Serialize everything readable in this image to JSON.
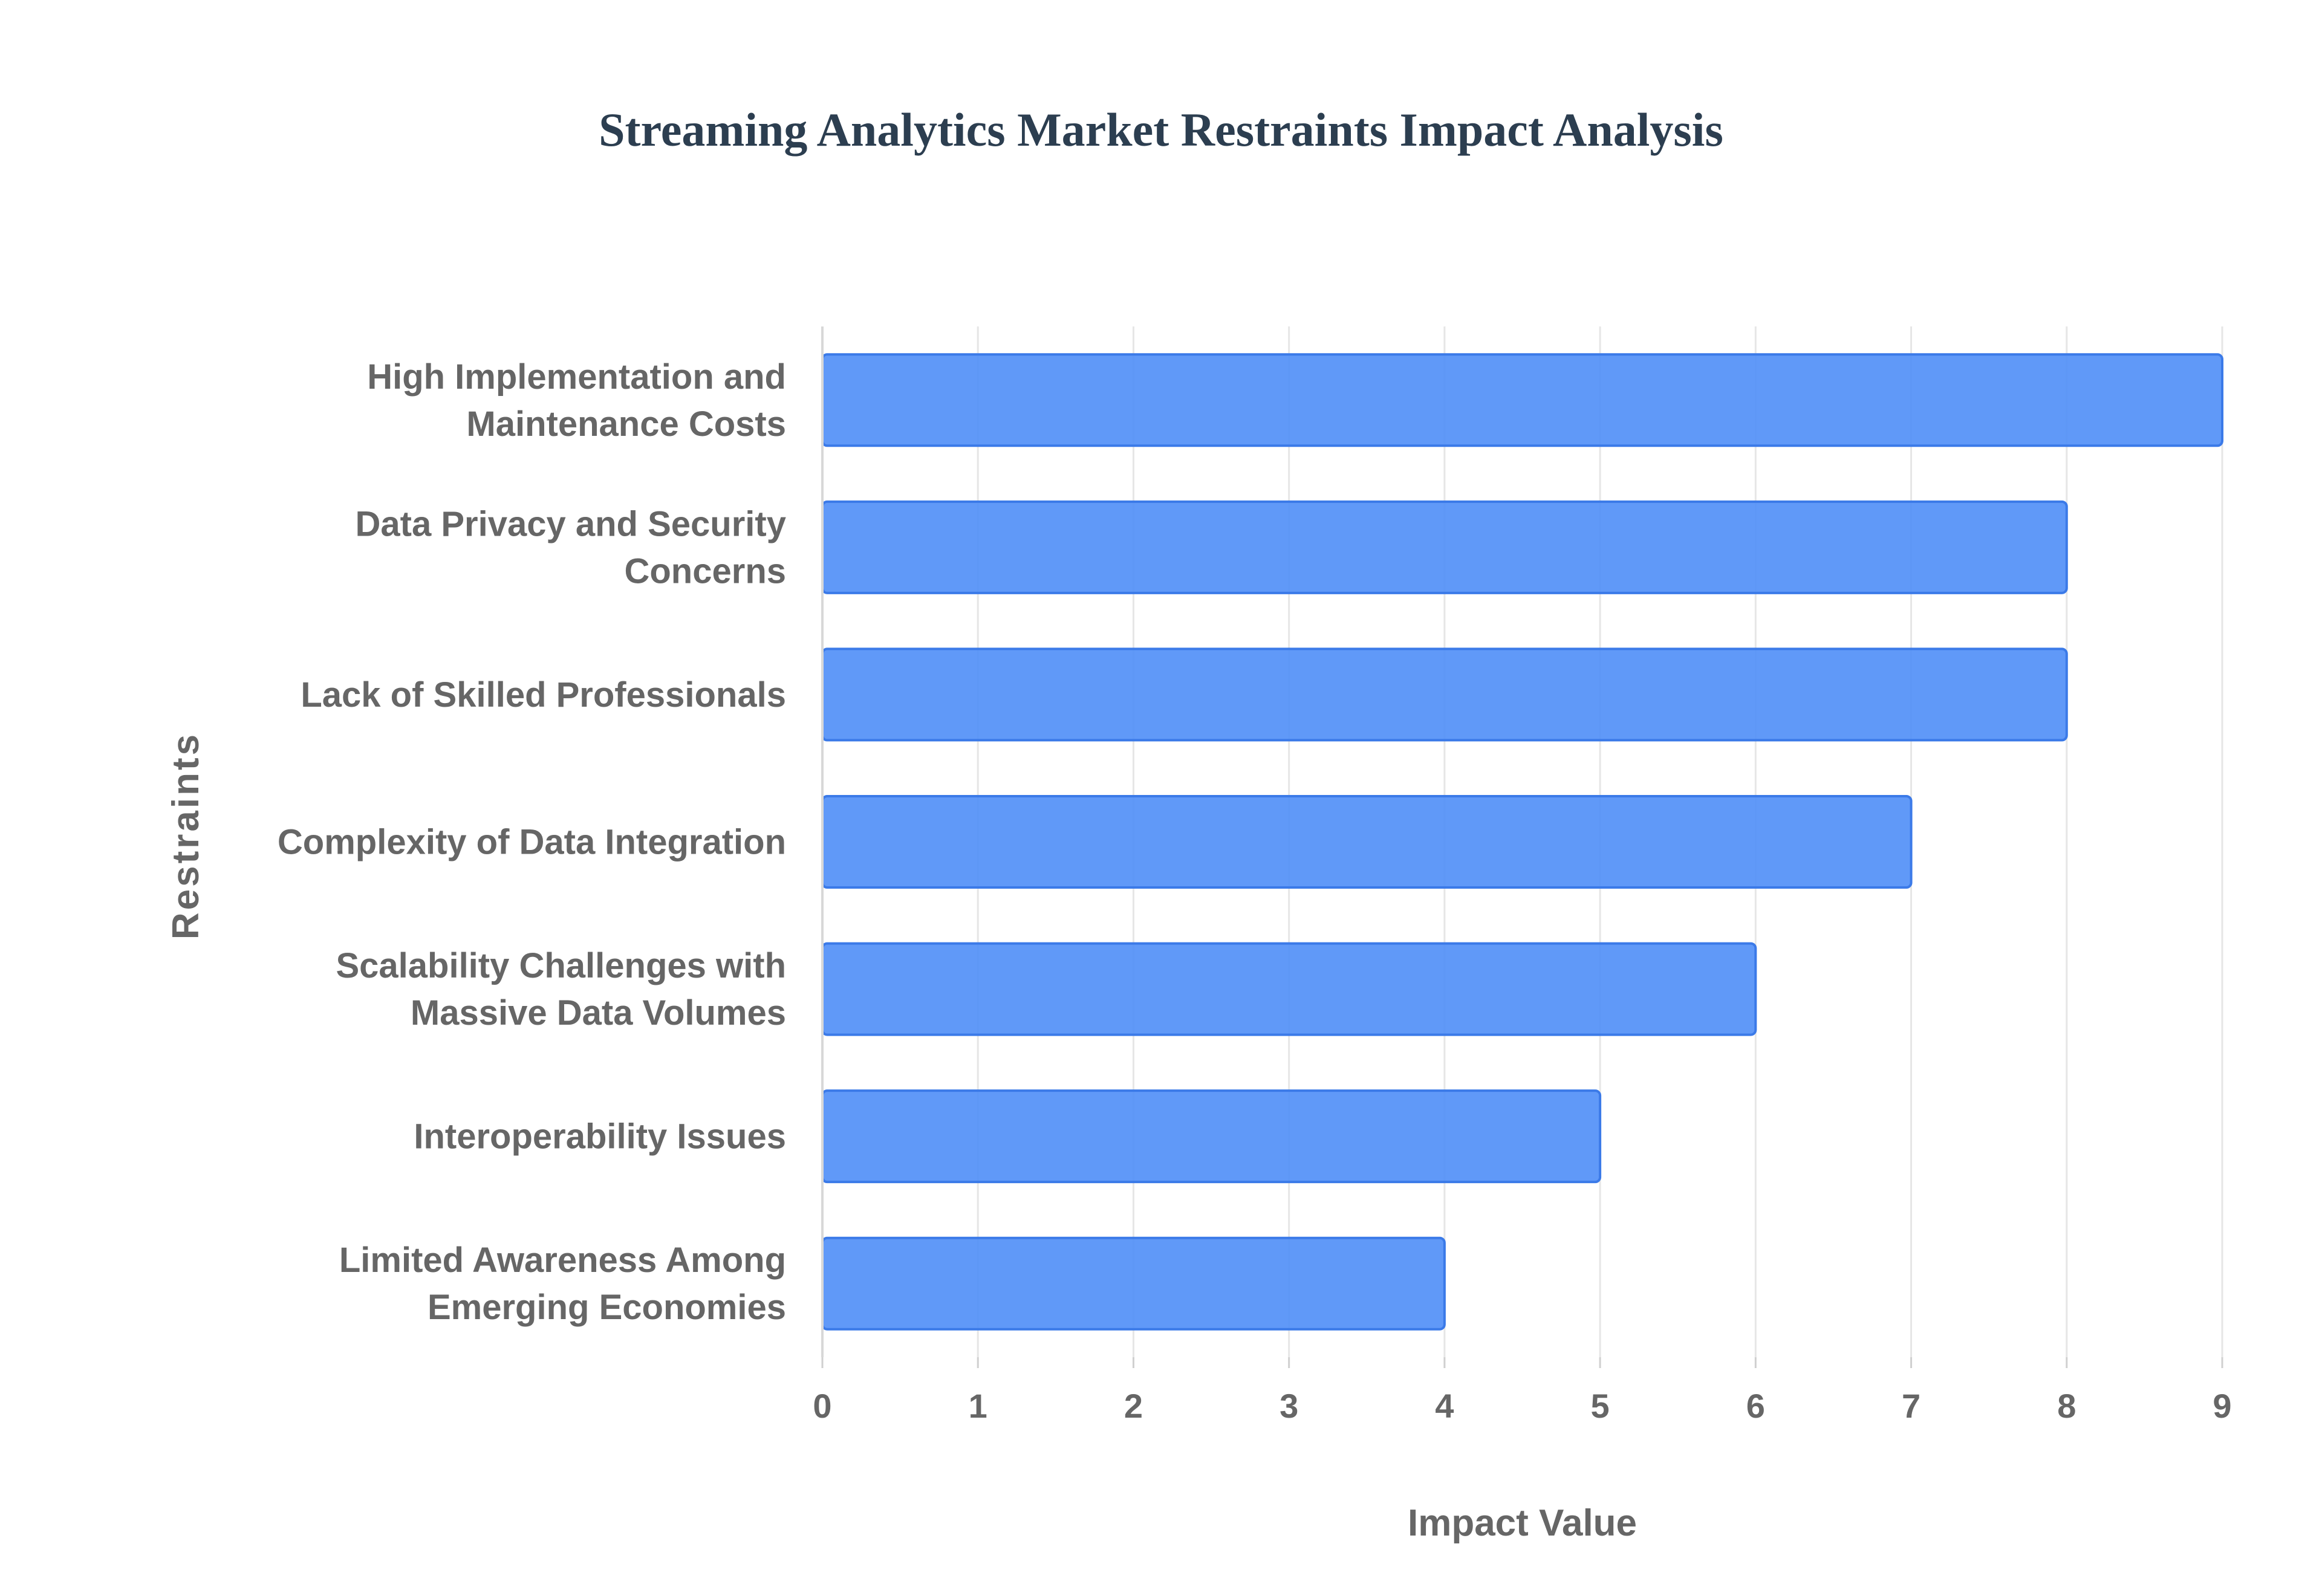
{
  "chart_data": {
    "type": "bar",
    "orientation": "horizontal",
    "title": "Streaming Analytics Market Restraints Impact Analysis",
    "xlabel": "Impact Value",
    "ylabel": "Restraints",
    "xlim": [
      0,
      9
    ],
    "x_ticks": [
      0,
      1,
      2,
      3,
      4,
      5,
      6,
      7,
      8,
      9
    ],
    "grid": true,
    "categories": [
      [
        "High Implementation and",
        "Maintenance Costs"
      ],
      [
        "Data Privacy and Security",
        "Concerns"
      ],
      [
        "Lack of Skilled Professionals"
      ],
      [
        "Complexity of Data Integration"
      ],
      [
        "Scalability Challenges with",
        "Massive Data Volumes"
      ],
      [
        "Interoperability Issues"
      ],
      [
        "Limited Awareness Among",
        "Emerging Economies"
      ]
    ],
    "values": [
      9,
      8,
      8,
      7,
      6,
      5,
      4
    ],
    "bar_color": "#4f8ef7"
  }
}
